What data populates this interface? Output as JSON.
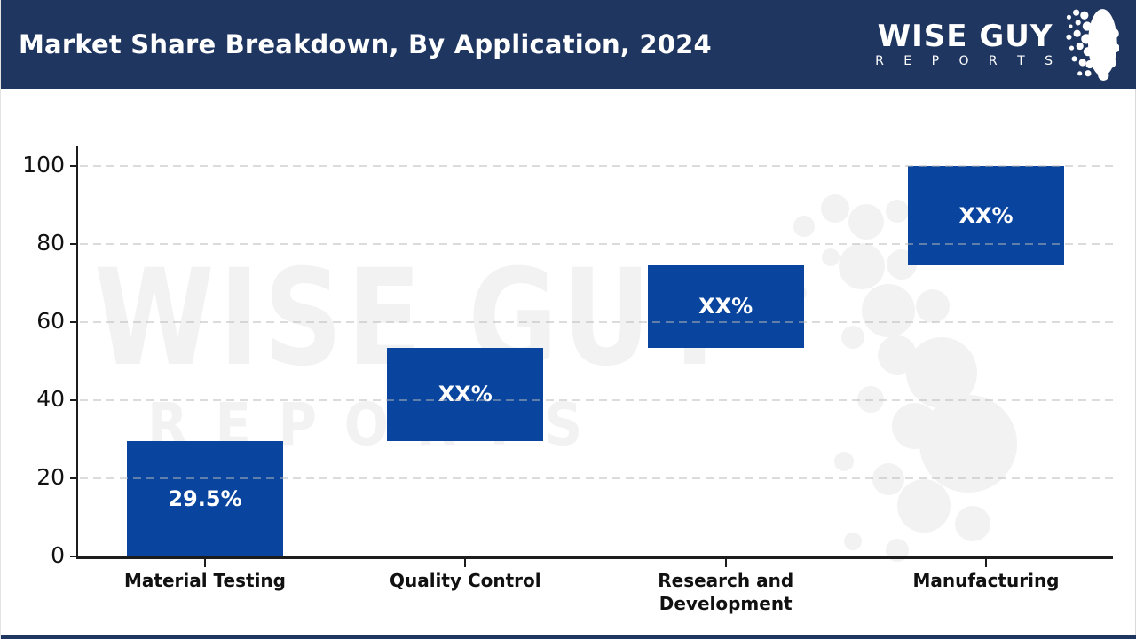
{
  "header": {
    "title": "Market Share Breakdown, By Application, 2024",
    "brand": {
      "wordmark": "WISE GUY",
      "sub_wordmark": "R E P O R T S"
    }
  },
  "watermark": {
    "wordmark": "WISE GUY",
    "sub_wordmark": "REPORTS"
  },
  "colors": {
    "header_bg": "#1f3660",
    "footer_bg": "#1f3660",
    "bar": "#09459e",
    "bar_label_text": "#ffffff",
    "axis": "#1c1c1c",
    "gridline": "#dcdcdc",
    "watermark": "#f2f2f2",
    "title_text": "#ffffff"
  },
  "chart_data": {
    "type": "bar",
    "subtype": "waterfall",
    "title": "Market Share Breakdown, By Application, 2024",
    "categories": [
      "Material Testing",
      "Quality Control",
      "Research and Development",
      "Manufacturing"
    ],
    "segments": [
      {
        "category": "Material Testing",
        "start": 0,
        "end": 29.5,
        "label": "29.5%"
      },
      {
        "category": "Quality Control",
        "start": 29.5,
        "end": 53.5,
        "label": "XX%"
      },
      {
        "category": "Research and Development",
        "start": 53.5,
        "end": 74.5,
        "label": "XX%"
      },
      {
        "category": "Manufacturing",
        "start": 74.5,
        "end": 100,
        "label": "XX%"
      }
    ],
    "xlabel": "",
    "ylabel": "",
    "ylim": [
      0,
      100
    ],
    "yticks": [
      0,
      20,
      40,
      60,
      80,
      100
    ],
    "grid": "horizontal-dashed",
    "legend": "none",
    "bar_color": "#09459e"
  }
}
